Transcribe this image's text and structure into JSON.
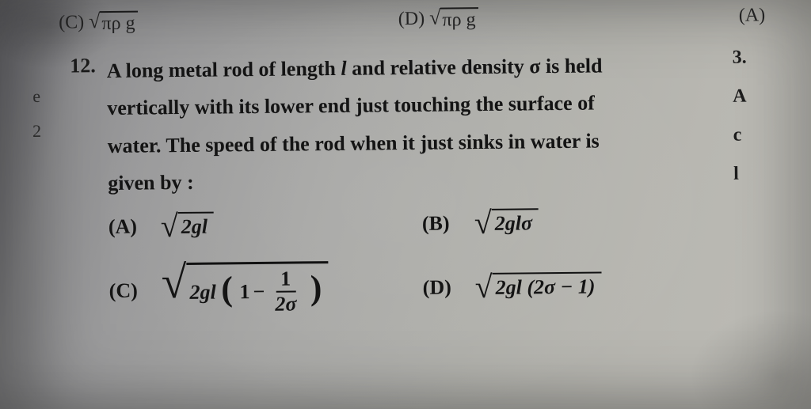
{
  "top_fragments": {
    "left_label": "(C)",
    "left_expr": "πρ g",
    "right_label": "(D)",
    "right_expr": "πρ g",
    "right_edge": "(A)"
  },
  "left_edge": {
    "line1": "e",
    "line2": "2"
  },
  "question": {
    "number": "12.",
    "text_l1": "A long metal rod of length ",
    "var_l": "l",
    "text_l1b": " and relative density σ is held",
    "text_l2": "vertically with its lower end just touching the surface of",
    "text_l3": "water. The speed of the rod when it just sinks in water is",
    "text_l4": "given by :"
  },
  "right_col": {
    "num": "3.",
    "a": "A",
    "c": "c",
    "l": "l"
  },
  "options": {
    "A": {
      "label": "(A)",
      "inner": "2gl"
    },
    "B": {
      "label": "(B)",
      "inner": "2glσ"
    },
    "C": {
      "label": "(C)",
      "lead": "2gl",
      "one": "1",
      "minus": "−",
      "frac_num": "1",
      "frac_den": "2σ"
    },
    "D": {
      "label": "(D)",
      "inner": "2gl (2σ − 1)"
    }
  }
}
